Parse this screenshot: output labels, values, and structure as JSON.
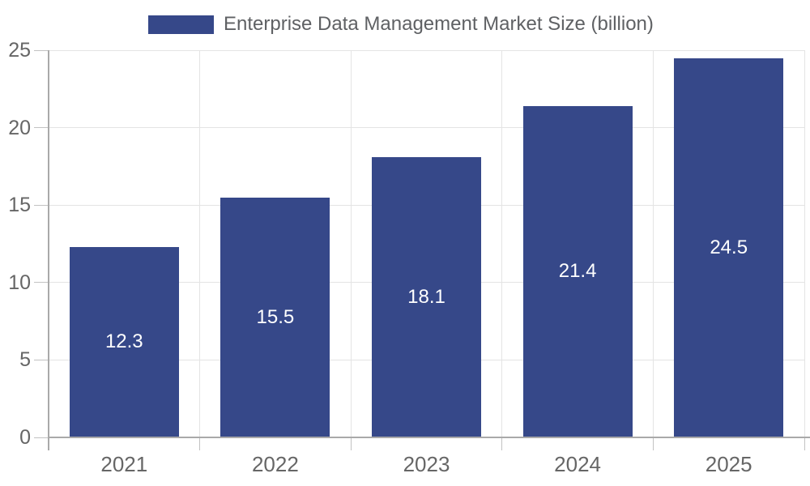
{
  "chart_data": {
    "type": "bar",
    "title": "Enterprise Data Management Market Size (billion)",
    "legend": {
      "position": "top",
      "label": "Enterprise Data Management Market Size (billion)"
    },
    "categories": [
      "2021",
      "2022",
      "2023",
      "2024",
      "2025"
    ],
    "series": [
      {
        "name": "Enterprise Data Management Market Size (billion)",
        "values": [
          12.3,
          15.5,
          18.1,
          21.4,
          24.5
        ]
      }
    ],
    "value_labels": [
      "12.3",
      "15.5",
      "18.1",
      "21.4",
      "24.5"
    ],
    "xlabel": "",
    "ylabel": "",
    "ylim": [
      0,
      25
    ],
    "yticks": [
      0,
      5,
      10,
      15,
      20,
      25
    ],
    "grid": true,
    "bar_width_fraction": 0.723,
    "colors": {
      "bar": "#364889",
      "grid": "#e4e4e4",
      "axis_line": "#a9a9a9",
      "tick": "#c2c2c2",
      "tick_label": "#666666",
      "legend_text": "#5f6164",
      "value_label": "#ffffff",
      "background": "#ffffff"
    }
  }
}
